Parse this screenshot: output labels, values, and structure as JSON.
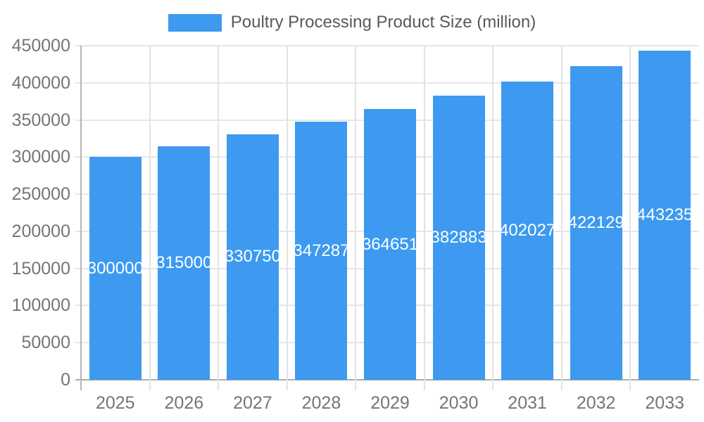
{
  "chart_data": {
    "type": "bar",
    "title": "Poultry Processing Product Size (million)",
    "legend": {
      "label": "Poultry Processing Product Size (million)",
      "position": "top"
    },
    "categories": [
      "2025",
      "2026",
      "2027",
      "2028",
      "2029",
      "2030",
      "2031",
      "2032",
      "2033"
    ],
    "series": [
      {
        "name": "Poultry Processing Product Size (million)",
        "values": [
          300000,
          315000,
          330750,
          347287,
          364651,
          382883,
          402027,
          422129,
          443235
        ]
      }
    ],
    "bar_labels": [
      "300000",
      "315000",
      "330750",
      "347287",
      "364651",
      "382883",
      "402027",
      "422129",
      "443235"
    ],
    "xlabel": "",
    "ylabel": "",
    "ylim": [
      0,
      450000
    ],
    "ytick_step": 50000,
    "yticks": [
      "450000",
      "400000",
      "350000",
      "300000",
      "250000",
      "200000",
      "150000",
      "100000",
      "50000",
      "0"
    ],
    "grid": true,
    "colors": {
      "bar": "#3d9af0",
      "bar_label_text": "#ffffff",
      "legend_text": "#58595b",
      "axis_text": "#757575",
      "gridline": "#e6e6e6",
      "vertical_gridline": "#e3e3e3",
      "axis_line": "#b4b4b4",
      "baseline": "#ababab",
      "background": "#ffffff"
    }
  }
}
